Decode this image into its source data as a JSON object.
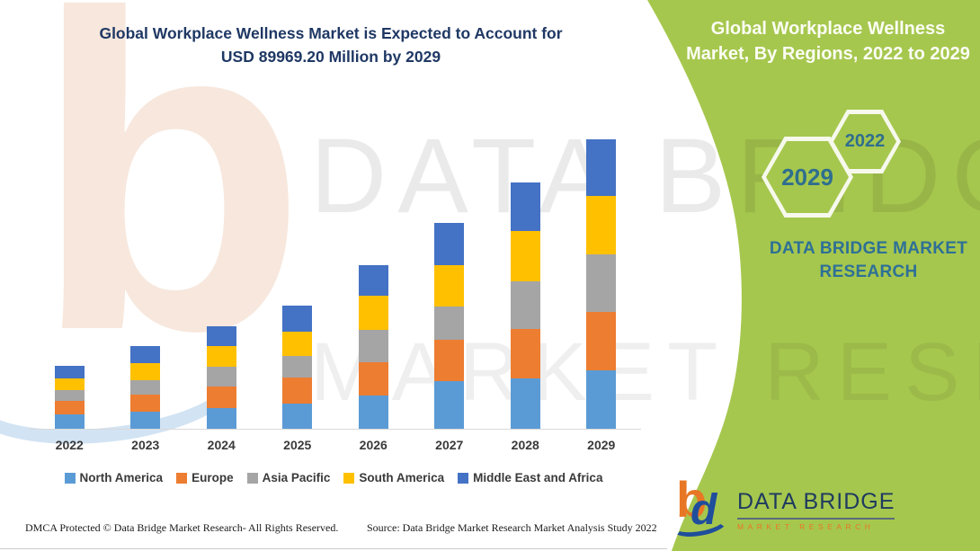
{
  "left_panel": {
    "title_line1": "Global Workplace Wellness Market is Expected to Account for",
    "title_line2": "USD 89969.20 Million by 2029",
    "footer_dmca": "DMCA Protected © Data Bridge Market Research- All Rights Reserved.",
    "footer_source": "Source: Data Bridge Market Research Market Analysis Study 2022"
  },
  "right_panel": {
    "heading": "Global Workplace Wellness Market, By Regions, 2022 to 2029",
    "hexagon_large_year": "2029",
    "hexagon_small_year": "2022",
    "brand_caption": "DATA BRIDGE MARKET RESEARCH",
    "logo_title": "DATA BRIDGE",
    "logo_subtitle": "MARKET RESEARCH",
    "logo_glyph_b": "b",
    "logo_glyph_d": "d"
  },
  "watermarks": {
    "big_letter": "b",
    "text_top": "DATA BRIDGE",
    "text_bottom": "MARKET RESEARCH"
  },
  "colors": {
    "panel_green": "#A6C74E",
    "title_navy": "#1F3864",
    "hex_year_teal": "#2F6E8E",
    "caption_teal": "#2E7096",
    "logo_orange": "#E87725",
    "logo_blue": "#1F4E9C",
    "axis_gray": "#D9D9D9"
  },
  "chart_data": {
    "type": "bar",
    "stacked": true,
    "title": "Global Workplace Wellness Market is Expected to Account for USD 89969.20 Million by 2029",
    "units": "USD Million",
    "xlabel": "",
    "ylabel": "",
    "grid": false,
    "legend_position": "bottom",
    "values_estimated_from_pixels": true,
    "ylim": [
      0,
      95000
    ],
    "total_2029": 89969.2,
    "categories": [
      "2022",
      "2023",
      "2024",
      "2025",
      "2026",
      "2027",
      "2028",
      "2029"
    ],
    "series": [
      {
        "name": "North America",
        "color": "#5B9BD5",
        "values": [
          4500,
          5300,
          6450,
          7850,
          10350,
          14800,
          15700,
          18250
        ]
      },
      {
        "name": "Europe",
        "color": "#ED7D31",
        "values": [
          4200,
          5300,
          6700,
          8100,
          10350,
          12800,
          15400,
          18200
        ]
      },
      {
        "name": "Asia Pacific",
        "color": "#A5A5A5",
        "values": [
          3400,
          4500,
          6150,
          6750,
          10100,
          10400,
          14850,
          17650
        ]
      },
      {
        "name": "South America",
        "color": "#FFC000",
        "values": [
          3650,
          5300,
          6450,
          7550,
          10650,
          13000,
          15400,
          18200
        ]
      },
      {
        "name": "Middle East and Africa",
        "color": "#4472C4",
        "values": [
          3900,
          5300,
          6150,
          8100,
          9550,
          12900,
          15150,
          17669.2
        ]
      }
    ],
    "totals": [
      19650,
      25700,
      31900,
      38350,
      51000,
      63900,
      76500,
      89969.2
    ]
  }
}
